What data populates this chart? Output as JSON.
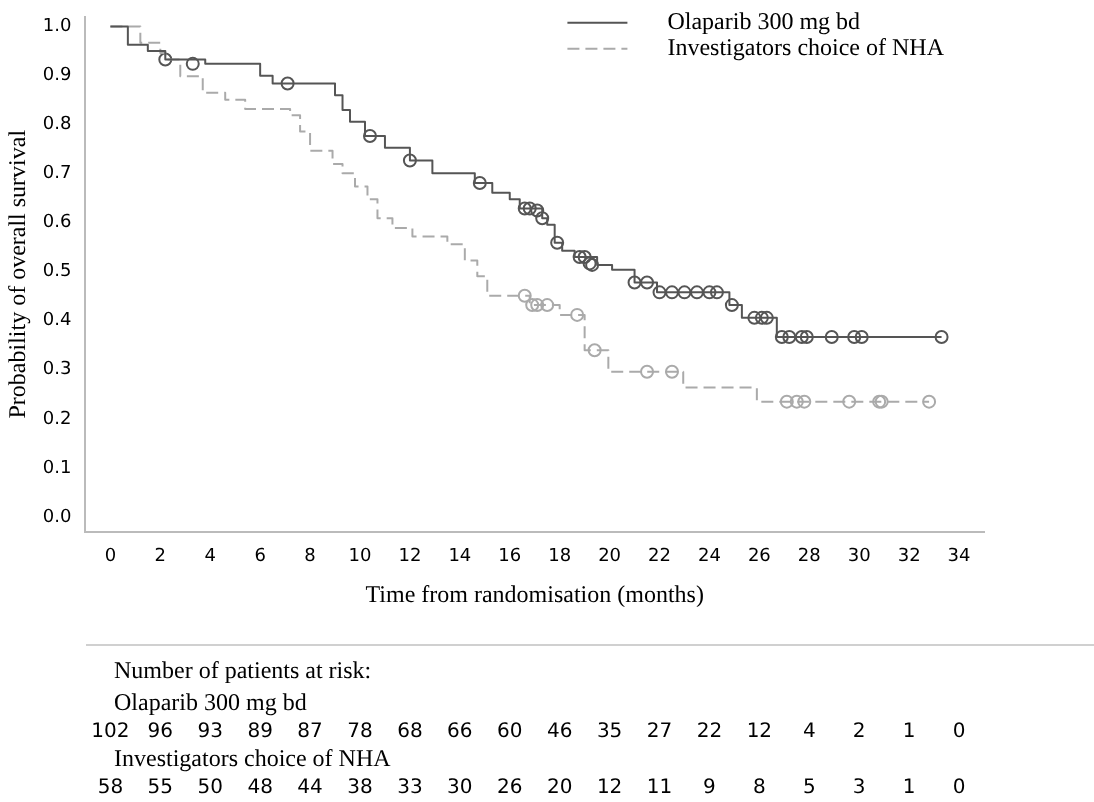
{
  "chart_data": {
    "type": "step",
    "xlabel": "Time from randomisation (months)",
    "ylabel": "Probability of overall survival",
    "xlim": [
      -1,
      35
    ],
    "xticks": [
      0,
      2,
      4,
      6,
      8,
      10,
      12,
      14,
      16,
      18,
      20,
      22,
      24,
      26,
      28,
      30,
      32,
      34
    ],
    "ylim": [
      -0.03,
      1.02
    ],
    "yticks": [
      {
        "value": 0,
        "label": "0.0"
      },
      0.1,
      0.2,
      0.3,
      0.4,
      0.5,
      0.6,
      0.7,
      0.8,
      0.9,
      {
        "value": 1,
        "label": "1.0"
      }
    ],
    "grid": false,
    "legend": "top right",
    "marker": "none",
    "series": [
      {
        "name": "Olaparib 300 mg bd",
        "color": "#555555",
        "line_style": "solid",
        "x": [
          0,
          0.7,
          1.5,
          2.2,
          3.8,
          6.0,
          6.5,
          9.0,
          9.3,
          9.6,
          10.2,
          11.0,
          12.0,
          12.9,
          14.6,
          15.3,
          16.0,
          16.4,
          17.3,
          17.5,
          17.8,
          18.1,
          18.6,
          19.5,
          20.1,
          21.0,
          21.9,
          24.8,
          25.3,
          26.7,
          33.3
        ],
        "values": [
          1.0,
          0.963,
          0.95,
          0.933,
          0.924,
          0.9,
          0.884,
          0.86,
          0.83,
          0.806,
          0.777,
          0.753,
          0.727,
          0.701,
          0.681,
          0.661,
          0.648,
          0.629,
          0.609,
          0.596,
          0.559,
          0.543,
          0.53,
          0.514,
          0.504,
          0.478,
          0.458,
          0.432,
          0.406,
          0.367,
          0.367
        ]
      },
      {
        "name": "Investigators choice of NHA",
        "color": "#aaaaaa",
        "line_style": "dashed",
        "x": [
          0,
          1.2,
          2.0,
          2.2,
          2.8,
          3.7,
          4.6,
          5.4,
          7.2,
          7.6,
          8.0,
          8.9,
          9.3,
          9.8,
          10.3,
          10.7,
          11.3,
          12.1,
          13.5,
          14.2,
          14.7,
          15.1,
          16.8,
          18.0,
          19.0,
          19.95,
          22.95,
          25.9,
          32.8
        ],
        "values": [
          1.0,
          0.967,
          0.946,
          0.933,
          0.899,
          0.865,
          0.851,
          0.832,
          0.819,
          0.786,
          0.747,
          0.72,
          0.701,
          0.674,
          0.648,
          0.609,
          0.589,
          0.572,
          0.556,
          0.523,
          0.491,
          0.451,
          0.432,
          0.412,
          0.34,
          0.296,
          0.264,
          0.235,
          0.235
        ]
      },
      {
        "type": "scatter",
        "marker": "circle",
        "color": "#555555",
        "x": [
          2.2,
          3.3,
          7.1,
          10.4,
          12.0,
          14.8,
          16.6,
          16.8,
          17.1,
          17.3,
          17.9,
          18.8,
          19.0,
          19.2,
          19.3,
          21.0,
          21.5,
          22.0,
          22.5,
          23.0,
          23.5,
          24.0,
          24.3,
          24.9,
          25.8,
          26.1,
          26.3,
          26.9,
          27.2,
          27.7,
          27.9,
          28.9,
          29.8,
          30.1,
          33.3
        ],
        "values": [
          0.933,
          0.924,
          0.884,
          0.777,
          0.727,
          0.681,
          0.629,
          0.629,
          0.625,
          0.609,
          0.559,
          0.53,
          0.53,
          0.517,
          0.514,
          0.478,
          0.478,
          0.458,
          0.458,
          0.458,
          0.458,
          0.458,
          0.458,
          0.432,
          0.406,
          0.406,
          0.406,
          0.367,
          0.367,
          0.367,
          0.367,
          0.367,
          0.367,
          0.367,
          0.367
        ]
      },
      {
        "type": "scatter",
        "marker": "circle",
        "color": "#aaaaaa",
        "x": [
          16.6,
          16.9,
          17.1,
          17.5,
          18.7,
          19.4,
          21.5,
          22.5,
          27.1,
          27.5,
          27.8,
          29.6,
          30.8,
          30.9,
          32.8
        ],
        "values": [
          0.451,
          0.432,
          0.432,
          0.432,
          0.412,
          0.34,
          0.296,
          0.296,
          0.235,
          0.235,
          0.235,
          0.235,
          0.235,
          0.235,
          0.235
        ]
      }
    ],
    "annotations": [
      "Number of patients at risk:",
      "Olaparib 300 mg bd",
      "102 96 93 89 87 78 68 66 60 46 35 27 22 12 4 2 1 0",
      "Investigators choice of NHA",
      "58 55 50 48 44 38 33 30 26 20 12 11 9 8 5 3 1 0"
    ]
  }
}
